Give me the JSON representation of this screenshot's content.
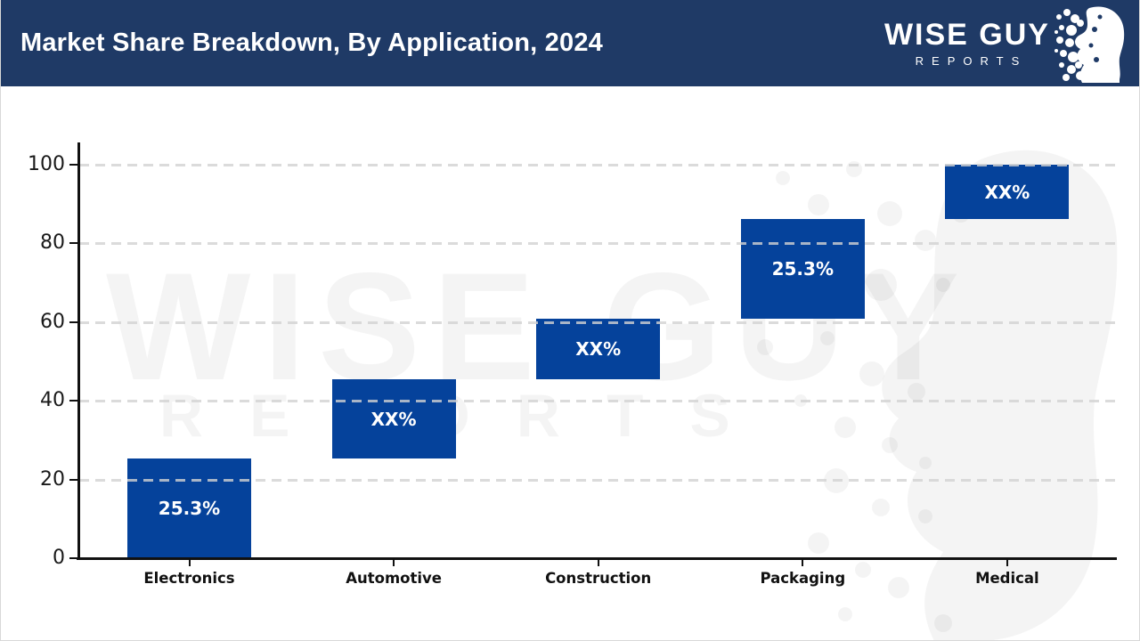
{
  "header": {
    "title": "Market Share Breakdown, By Application, 2024",
    "logo": {
      "line1": "WISE GUY",
      "line2": "REPORTS"
    }
  },
  "watermark": {
    "line1": "WISE GUY",
    "line2": "REPORTS"
  },
  "colors": {
    "header_bg": "#1f3a66",
    "bar": "#05429b",
    "grid": "#d2d2d2",
    "axis": "#111111",
    "bar_label": "#ffffff"
  },
  "chart_data": {
    "type": "bar",
    "subtype": "waterfall-floating-bars",
    "title": "Market Share Breakdown, By Application, 2024",
    "categories": [
      "Electronics",
      "Automotive",
      "Construction",
      "Packaging",
      "Medical"
    ],
    "segments": [
      {
        "category": "Electronics",
        "start": 0,
        "end": 25.3,
        "label": "25.3%"
      },
      {
        "category": "Automotive",
        "start": 25.3,
        "end": 45.5,
        "label": "XX%"
      },
      {
        "category": "Construction",
        "start": 45.5,
        "end": 60.8,
        "label": "XX%"
      },
      {
        "category": "Packaging",
        "start": 60.8,
        "end": 86.1,
        "label": "25.3%"
      },
      {
        "category": "Medical",
        "start": 86.1,
        "end": 100,
        "label": "XX%"
      }
    ],
    "yticks": [
      0,
      20,
      40,
      60,
      80,
      100
    ],
    "ylim": [
      0,
      106
    ],
    "xlabel": "",
    "ylabel": "",
    "grid": "horizontal-dashed-over-bars",
    "legend": "none"
  }
}
